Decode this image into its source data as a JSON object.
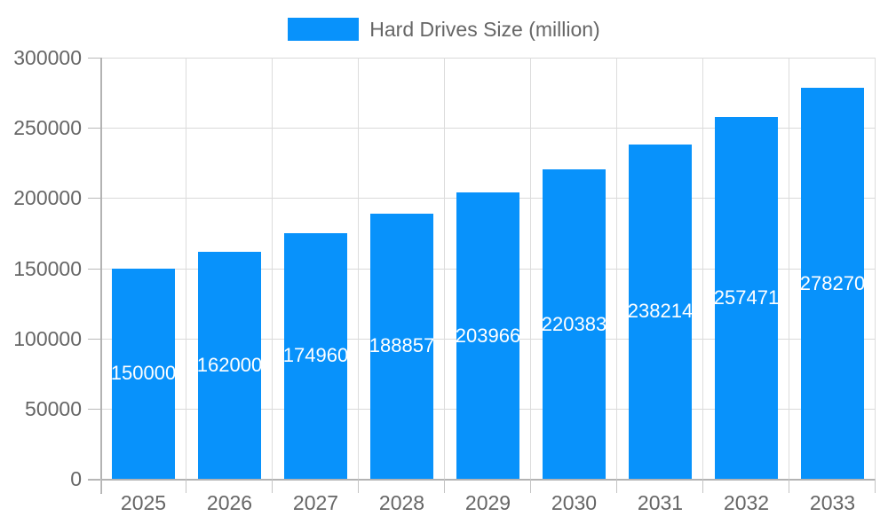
{
  "legend": {
    "label": "Hard Drives Size (million)"
  },
  "chart_data": {
    "type": "bar",
    "title": "Hard Drives Size (million)",
    "categories": [
      "2025",
      "2026",
      "2027",
      "2028",
      "2029",
      "2030",
      "2031",
      "2032",
      "2033"
    ],
    "values": [
      150000,
      162000,
      174960,
      188857,
      203966,
      220383,
      238214,
      257471,
      278270
    ],
    "value_labels": [
      "150000",
      "162000",
      "174960",
      "188857",
      "203966",
      "220383",
      "238214",
      "257471",
      "278270"
    ],
    "xlabel": "",
    "ylabel": "",
    "ylim": [
      0,
      300000
    ],
    "yticks": [
      0,
      50000,
      100000,
      150000,
      200000,
      250000,
      300000
    ],
    "ytick_labels": [
      "0",
      "50000",
      "100000",
      "150000",
      "200000",
      "250000",
      "300000"
    ],
    "grid": true,
    "legend_position": "top",
    "colors": {
      "bar": "#0892FB",
      "value_label": "#FFFFFF",
      "axis_text": "#666666",
      "gridline": "#D9D9D9",
      "axis_line": "#B3B3B3"
    }
  }
}
